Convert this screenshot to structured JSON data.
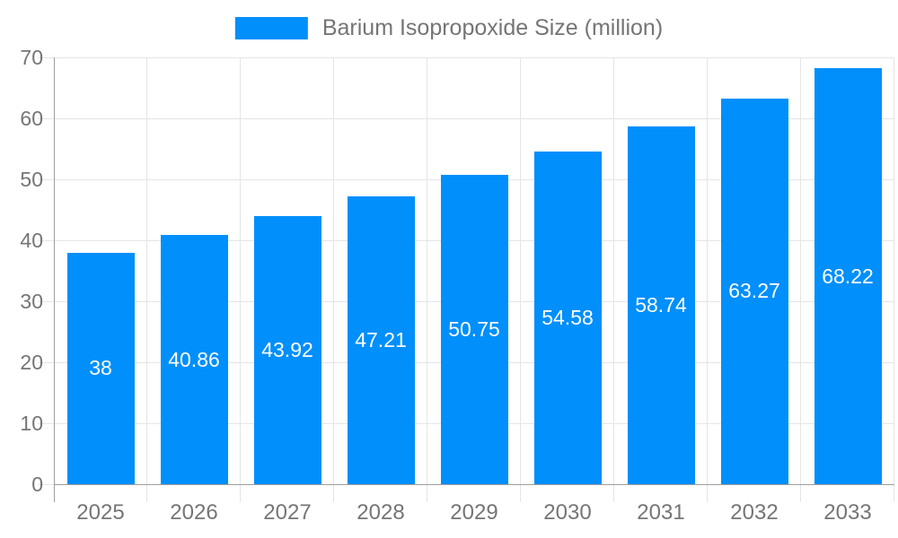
{
  "legend": {
    "label": "Barium Isopropoxide Size (million)",
    "swatch_color": "#008FFB"
  },
  "chart_data": {
    "type": "bar",
    "title": "",
    "xlabel": "",
    "ylabel": "",
    "categories": [
      "2025",
      "2026",
      "2027",
      "2028",
      "2029",
      "2030",
      "2031",
      "2032",
      "2033"
    ],
    "series": [
      {
        "name": "Barium Isopropoxide Size (million)",
        "values": [
          38,
          40.86,
          43.92,
          47.21,
          50.75,
          54.58,
          58.74,
          63.27,
          68.22
        ]
      }
    ],
    "bar_value_labels": [
      "38",
      "40.86",
      "43.92",
      "47.21",
      "50.75",
      "54.58",
      "58.74",
      "63.27",
      "68.22"
    ],
    "ylim": [
      0,
      70
    ],
    "y_ticks": [
      0,
      10,
      20,
      30,
      40,
      50,
      60,
      70
    ],
    "y_tick_labels": [
      "0",
      "10",
      "20",
      "30",
      "40",
      "50",
      "60",
      "70"
    ],
    "grid": true,
    "legend_position": "top",
    "colors": {
      "bar": "#008FFB",
      "bar_value_text": "#ffffff",
      "grid": "#e5e5e5",
      "axis_line": "#9e9e9e",
      "axis_text": "#757575",
      "background": "#ffffff"
    }
  }
}
